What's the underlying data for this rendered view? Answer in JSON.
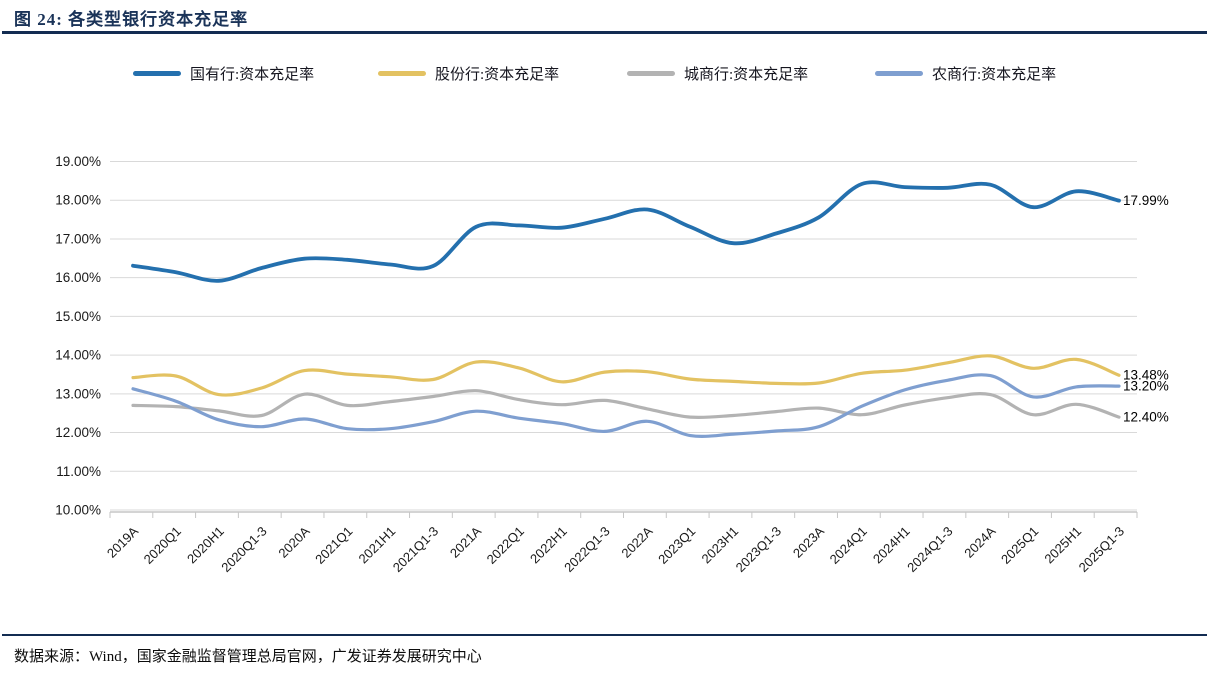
{
  "header": {
    "title": "图 24: 各类型银行资本充足率"
  },
  "source": {
    "text": "数据来源：Wind，国家金融监督管理总局官网，广发证券发展研究中心"
  },
  "colors": {
    "accent_navy": "#132c52",
    "title_navy": "#1a3358",
    "grid": "#d9d9d9",
    "axis": "#c6c6c6",
    "tick_text": "#1a1a1a",
    "end_label_text": "#000000"
  },
  "chart_data": {
    "type": "line",
    "smoothed": true,
    "title": "图 24: 各类型银行资本充足率",
    "unit": "%",
    "grid": true,
    "legend_position": "top",
    "ylim": [
      10,
      19
    ],
    "y_tick_values": [
      19,
      18,
      17,
      16,
      15,
      14,
      13,
      12,
      11,
      10
    ],
    "y_tick_labels": [
      "19.00%",
      "18.00%",
      "17.00%",
      "16.00%",
      "15.00%",
      "14.00%",
      "13.00%",
      "12.00%",
      "11.00%",
      "10.00%"
    ],
    "categories": [
      "2019A",
      "2020Q1",
      "2020H1",
      "2020Q1-3",
      "2020A",
      "2021Q1",
      "2021H1",
      "2021Q1-3",
      "2021A",
      "2022Q1",
      "2022H1",
      "2022Q1-3",
      "2022A",
      "2023Q1",
      "2023H1",
      "2023Q1-3",
      "2023A",
      "2024Q1",
      "2024H1",
      "2024Q1-3",
      "2024A",
      "2025Q1",
      "2025H1",
      "2025Q1-3"
    ],
    "series": [
      {
        "name": "国有行:资本充足率",
        "color": "#2470ae",
        "end_label": "17.99%",
        "values": [
          16.31,
          16.14,
          15.92,
          16.25,
          16.49,
          16.46,
          16.34,
          16.3,
          17.31,
          17.35,
          17.29,
          17.52,
          17.76,
          17.31,
          16.89,
          17.14,
          17.56,
          18.42,
          18.34,
          18.32,
          18.4,
          17.82,
          18.23,
          17.99
        ]
      },
      {
        "name": "股份行:资本充足率",
        "color": "#e3c262",
        "end_label": "13.48%",
        "values": [
          13.42,
          13.46,
          12.98,
          13.15,
          13.6,
          13.51,
          13.44,
          13.37,
          13.82,
          13.67,
          13.31,
          13.56,
          13.57,
          13.38,
          13.32,
          13.27,
          13.28,
          13.53,
          13.61,
          13.8,
          13.98,
          13.66,
          13.89,
          13.48
        ]
      },
      {
        "name": "城商行:资本充足率",
        "color": "#b3b3b3",
        "end_label": "12.40%",
        "values": [
          12.7,
          12.67,
          12.56,
          12.44,
          12.99,
          12.7,
          12.8,
          12.93,
          13.08,
          12.85,
          12.72,
          12.83,
          12.61,
          12.4,
          12.44,
          12.54,
          12.63,
          12.46,
          12.71,
          12.9,
          12.98,
          12.46,
          12.73,
          12.4
        ]
      },
      {
        "name": "农商行:资本充足率",
        "color": "#7f9fd0",
        "end_label": "13.20%",
        "values": [
          13.13,
          12.81,
          12.33,
          12.15,
          12.35,
          12.1,
          12.1,
          12.28,
          12.55,
          12.37,
          12.23,
          12.03,
          12.29,
          11.92,
          11.96,
          12.04,
          12.15,
          12.68,
          13.1,
          13.35,
          13.47,
          12.92,
          13.18,
          13.2
        ]
      }
    ]
  }
}
